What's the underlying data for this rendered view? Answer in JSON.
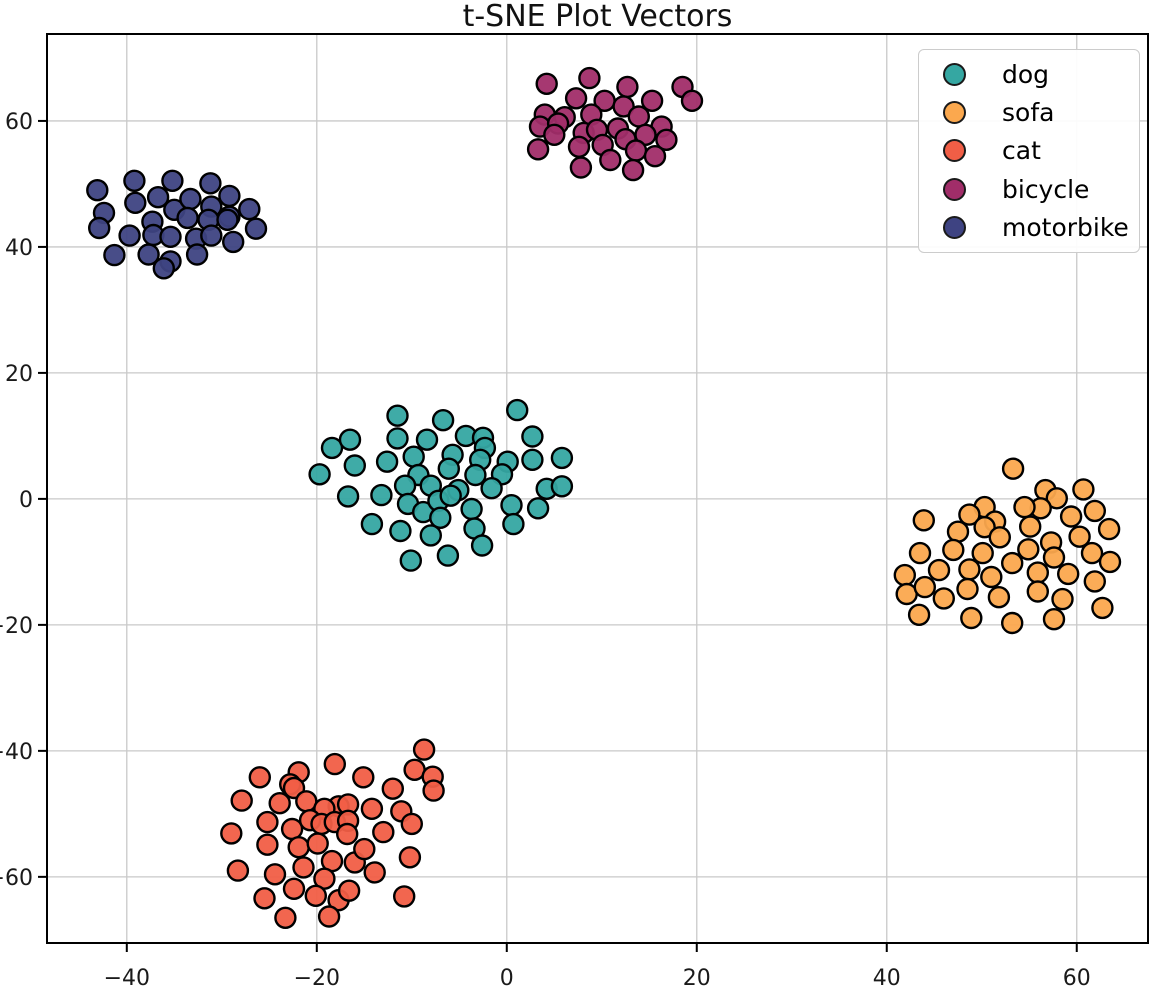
{
  "figure": {
    "background": "#ffffff"
  },
  "chart_data": {
    "type": "scatter",
    "title": "t-SNE Plot Vectors",
    "xlabel": "",
    "ylabel": "",
    "xlim": [
      -48.4,
      67.5
    ],
    "ylim": [
      -70.5,
      73.8
    ],
    "xticks": [
      -40,
      -20,
      0,
      20,
      40,
      60
    ],
    "yticks": [
      -60,
      -40,
      -20,
      0,
      20,
      40,
      60
    ],
    "grid": true,
    "grid_color": "#c9c9c9",
    "axis_color": "#000000",
    "text_color": "#1a1a1a",
    "marker_edge_color": "#000000",
    "legend_position": "upper right",
    "series": [
      {
        "name": "dog",
        "color": "#35a7a2",
        "points": [
          [
            -11.5,
            13.2
          ],
          [
            -6.7,
            12.5
          ],
          [
            1.1,
            14.1
          ],
          [
            -18.4,
            8.1
          ],
          [
            -16.5,
            9.4
          ],
          [
            -11.5,
            9.6
          ],
          [
            -8.4,
            9.4
          ],
          [
            -4.3,
            10.0
          ],
          [
            -2.5,
            9.7
          ],
          [
            -2.3,
            8.1
          ],
          [
            2.7,
            9.9
          ],
          [
            -16.0,
            5.3
          ],
          [
            -12.6,
            5.9
          ],
          [
            -9.8,
            6.7
          ],
          [
            -5.7,
            7.0
          ],
          [
            -2.8,
            6.2
          ],
          [
            0.1,
            5.9
          ],
          [
            2.7,
            6.2
          ],
          [
            5.8,
            6.5
          ],
          [
            -19.7,
            3.9
          ],
          [
            -9.3,
            3.8
          ],
          [
            -6.1,
            4.8
          ],
          [
            -3.3,
            3.8
          ],
          [
            -0.5,
            3.9
          ],
          [
            4.2,
            1.6
          ],
          [
            5.8,
            2.0
          ],
          [
            -10.7,
            2.1
          ],
          [
            -8.0,
            2.1
          ],
          [
            -5.1,
            1.4
          ],
          [
            -1.6,
            1.7
          ],
          [
            -16.7,
            0.4
          ],
          [
            -13.2,
            0.6
          ],
          [
            -10.4,
            -0.8
          ],
          [
            -8.8,
            -2.1
          ],
          [
            -7.2,
            -0.3
          ],
          [
            -5.9,
            0.5
          ],
          [
            -3.7,
            -1.6
          ],
          [
            0.5,
            -1.0
          ],
          [
            3.3,
            -1.5
          ],
          [
            -7.0,
            -3.0
          ],
          [
            -14.2,
            -4.0
          ],
          [
            -11.2,
            -5.1
          ],
          [
            -8.0,
            -5.8
          ],
          [
            -3.4,
            -4.7
          ],
          [
            0.7,
            -4.0
          ],
          [
            -2.6,
            -7.4
          ],
          [
            -10.1,
            -9.8
          ],
          [
            -6.2,
            -9.0
          ]
        ]
      },
      {
        "name": "sofa",
        "color": "#fba84e",
        "points": [
          [
            53.3,
            4.8
          ],
          [
            56.7,
            1.4
          ],
          [
            57.9,
            0.1
          ],
          [
            60.7,
            1.5
          ],
          [
            56.2,
            -1.5
          ],
          [
            54.5,
            -1.3
          ],
          [
            50.3,
            -1.3
          ],
          [
            61.9,
            -1.9
          ],
          [
            43.9,
            -3.4
          ],
          [
            48.7,
            -2.5
          ],
          [
            51.4,
            -3.6
          ],
          [
            55.1,
            -4.4
          ],
          [
            59.4,
            -2.8
          ],
          [
            63.4,
            -4.8
          ],
          [
            47.5,
            -5.2
          ],
          [
            50.3,
            -4.5
          ],
          [
            51.9,
            -6.1
          ],
          [
            57.3,
            -6.9
          ],
          [
            60.3,
            -6.0
          ],
          [
            43.5,
            -8.6
          ],
          [
            47.0,
            -8.1
          ],
          [
            50.1,
            -8.6
          ],
          [
            54.9,
            -8.0
          ],
          [
            57.6,
            -9.3
          ],
          [
            61.6,
            -8.6
          ],
          [
            63.5,
            -10.0
          ],
          [
            41.9,
            -12.1
          ],
          [
            45.5,
            -11.3
          ],
          [
            48.7,
            -11.2
          ],
          [
            51.0,
            -12.4
          ],
          [
            53.2,
            -10.2
          ],
          [
            55.9,
            -11.7
          ],
          [
            59.1,
            -11.9
          ],
          [
            61.9,
            -13.1
          ],
          [
            42.1,
            -15.1
          ],
          [
            44.0,
            -14.0
          ],
          [
            46.0,
            -15.8
          ],
          [
            48.5,
            -14.3
          ],
          [
            51.8,
            -15.6
          ],
          [
            55.9,
            -14.7
          ],
          [
            58.5,
            -15.9
          ],
          [
            43.4,
            -18.4
          ],
          [
            48.9,
            -18.9
          ],
          [
            53.2,
            -19.7
          ],
          [
            57.6,
            -19.1
          ],
          [
            62.7,
            -17.3
          ]
        ]
      },
      {
        "name": "cat",
        "color": "#f15e46",
        "points": [
          [
            -8.7,
            -39.8
          ],
          [
            -18.1,
            -42.1
          ],
          [
            -9.7,
            -43.0
          ],
          [
            -7.8,
            -44.1
          ],
          [
            -26.0,
            -44.2
          ],
          [
            -21.9,
            -43.4
          ],
          [
            -15.1,
            -44.2
          ],
          [
            -12.0,
            -46.0
          ],
          [
            -7.7,
            -46.3
          ],
          [
            -27.9,
            -47.9
          ],
          [
            -22.8,
            -45.3
          ],
          [
            -22.4,
            -45.9
          ],
          [
            -23.9,
            -48.3
          ],
          [
            -21.1,
            -48.0
          ],
          [
            -17.7,
            -48.8
          ],
          [
            -19.2,
            -49.2
          ],
          [
            -16.7,
            -48.5
          ],
          [
            -14.2,
            -49.2
          ],
          [
            -11.1,
            -49.6
          ],
          [
            -29.0,
            -53.1
          ],
          [
            -25.2,
            -51.3
          ],
          [
            -22.6,
            -52.4
          ],
          [
            -20.7,
            -51.0
          ],
          [
            -19.5,
            -51.6
          ],
          [
            -18.1,
            -51.3
          ],
          [
            -16.7,
            -51.1
          ],
          [
            -16.8,
            -53.2
          ],
          [
            -13.0,
            -52.9
          ],
          [
            -10.0,
            -51.6
          ],
          [
            -25.2,
            -54.9
          ],
          [
            -21.9,
            -55.3
          ],
          [
            -19.9,
            -54.7
          ],
          [
            -18.4,
            -57.5
          ],
          [
            -16.0,
            -57.7
          ],
          [
            -15.0,
            -55.6
          ],
          [
            -10.2,
            -56.9
          ],
          [
            -13.9,
            -59.3
          ],
          [
            -28.3,
            -59.0
          ],
          [
            -24.4,
            -59.6
          ],
          [
            -21.4,
            -58.5
          ],
          [
            -19.2,
            -60.3
          ],
          [
            -22.4,
            -61.9
          ],
          [
            -20.1,
            -63.0
          ],
          [
            -25.5,
            -63.4
          ],
          [
            -17.7,
            -63.7
          ],
          [
            -16.6,
            -62.2
          ],
          [
            -10.8,
            -63.1
          ],
          [
            -23.3,
            -66.5
          ],
          [
            -18.7,
            -66.3
          ]
        ]
      },
      {
        "name": "bicycle",
        "color": "#a12d69",
        "points": [
          [
            4.2,
            65.9
          ],
          [
            8.7,
            66.8
          ],
          [
            12.7,
            65.4
          ],
          [
            7.3,
            63.6
          ],
          [
            10.3,
            63.2
          ],
          [
            15.3,
            63.2
          ],
          [
            18.5,
            65.4
          ],
          [
            19.5,
            63.2
          ],
          [
            4.0,
            61.0
          ],
          [
            6.1,
            60.6
          ],
          [
            8.9,
            61.0
          ],
          [
            12.3,
            62.3
          ],
          [
            13.9,
            60.7
          ],
          [
            16.3,
            59.1
          ],
          [
            3.5,
            59.1
          ],
          [
            5.4,
            59.6
          ],
          [
            5.0,
            57.8
          ],
          [
            8.1,
            58.1
          ],
          [
            9.5,
            58.6
          ],
          [
            11.7,
            58.8
          ],
          [
            14.6,
            57.8
          ],
          [
            16.8,
            57.0
          ],
          [
            3.3,
            55.5
          ],
          [
            7.6,
            55.9
          ],
          [
            10.1,
            56.2
          ],
          [
            12.5,
            57.1
          ],
          [
            13.6,
            55.3
          ],
          [
            15.6,
            54.4
          ],
          [
            10.9,
            53.8
          ],
          [
            7.8,
            52.6
          ],
          [
            13.3,
            52.2
          ]
        ]
      },
      {
        "name": "motorbike",
        "color": "#3e4382",
        "points": [
          [
            -43.1,
            49.0
          ],
          [
            -39.2,
            50.5
          ],
          [
            -35.2,
            50.5
          ],
          [
            -31.2,
            50.1
          ],
          [
            -29.2,
            48.1
          ],
          [
            -36.7,
            47.9
          ],
          [
            -39.1,
            47.0
          ],
          [
            -42.4,
            45.4
          ],
          [
            -35.0,
            45.9
          ],
          [
            -33.3,
            47.6
          ],
          [
            -31.1,
            46.4
          ],
          [
            -29.2,
            44.8
          ],
          [
            -27.1,
            46.0
          ],
          [
            -26.4,
            42.9
          ],
          [
            -42.9,
            43.0
          ],
          [
            -37.3,
            44.0
          ],
          [
            -33.6,
            44.6
          ],
          [
            -31.4,
            44.3
          ],
          [
            -29.4,
            44.3
          ],
          [
            -39.7,
            41.8
          ],
          [
            -37.2,
            41.9
          ],
          [
            -35.4,
            41.6
          ],
          [
            -32.7,
            41.3
          ],
          [
            -31.1,
            41.8
          ],
          [
            -28.8,
            40.8
          ],
          [
            -41.3,
            38.7
          ],
          [
            -37.7,
            38.8
          ],
          [
            -35.4,
            37.7
          ],
          [
            -36.1,
            36.6
          ],
          [
            -32.6,
            38.8
          ]
        ]
      }
    ]
  }
}
